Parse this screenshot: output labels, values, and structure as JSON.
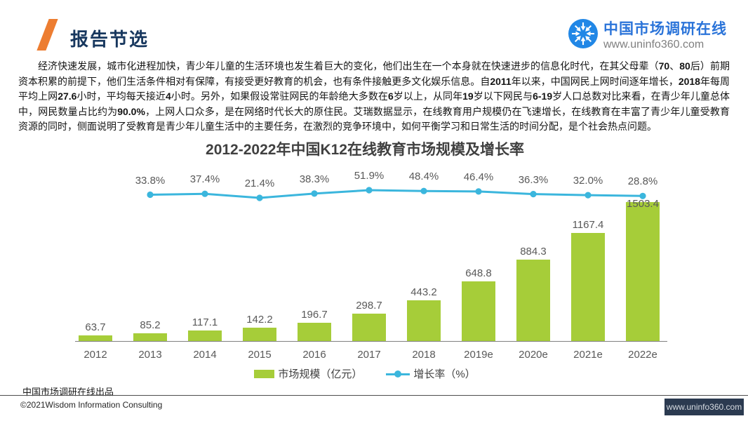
{
  "header": {
    "title": "报告节选"
  },
  "logo": {
    "name": "中国市场调研在线",
    "url": "www.uninfo360.com",
    "icon": "compass-arrows-icon"
  },
  "intro": {
    "segments": [
      {
        "t": "经济快速发展，城市化进程加快，青少年儿童的生活环境也发生着巨大的变化，他们出生在一个本身就在快速进步的信息化时代，在其父母辈（"
      },
      {
        "t": "70",
        "b": true
      },
      {
        "t": "、"
      },
      {
        "t": "80",
        "b": true
      },
      {
        "t": "后）前期资本积累的前提下，他们生活条件相对有保障，有接受更好教育的机会，也有条件接触更多文化娱乐信息。自"
      },
      {
        "t": "2011",
        "b": true
      },
      {
        "t": "年以来，中国网民上网时间逐年增长，"
      },
      {
        "t": "2018",
        "b": true
      },
      {
        "t": "年每周平均上网"
      },
      {
        "t": "27.6",
        "b": true
      },
      {
        "t": "小时，平均每天接近"
      },
      {
        "t": "4",
        "b": true
      },
      {
        "t": "小时。另外，如果假设常驻网民的年龄绝大多数在"
      },
      {
        "t": "6",
        "b": true
      },
      {
        "t": "岁以上，从同年"
      },
      {
        "t": "19",
        "b": true
      },
      {
        "t": "岁以下网民与"
      },
      {
        "t": "6-19",
        "b": true
      },
      {
        "t": "岁人口总数对比来看，在青少年儿童总体中，网民数量占比约为"
      },
      {
        "t": "90.0%",
        "b": true
      },
      {
        "t": "，上网人口众多，是在网络时代长大的原住民。艾瑞数据显示，在线教育用户规模仍在飞速增长，在线教育在丰富了青少年儿童受教育资源的同时，侧面说明了受教育是青少年儿童生活中的主要任务，在激烈的竞争环境中，如何平衡学习和日常生活的时间分配，是个社会热点问题。"
      }
    ]
  },
  "chart_data": {
    "type": "bar+line",
    "title": "2012-2022年中国K12在线教育市场规模及增长率",
    "categories": [
      "2012",
      "2013",
      "2014",
      "2015",
      "2016",
      "2017",
      "2018",
      "2019e",
      "2020e",
      "2021e",
      "2022e"
    ],
    "series": [
      {
        "name": "市场规模（亿元）",
        "type": "bar",
        "color": "#A6CD39",
        "values": [
          63.7,
          85.2,
          117.1,
          142.2,
          196.7,
          298.7,
          443.2,
          648.8,
          884.3,
          1167.4,
          1503.4
        ]
      },
      {
        "name": "增长率（%）",
        "type": "line",
        "color": "#3BB6DD",
        "values": [
          null,
          33.8,
          37.4,
          21.4,
          38.3,
          51.9,
          48.4,
          46.4,
          36.3,
          32.0,
          28.8
        ]
      }
    ],
    "value_label_format": "one-decimal",
    "line_label_format": "one-decimal-percent",
    "ylim_bars": [
      0,
      1600
    ],
    "grid": false,
    "legend_position": "bottom"
  },
  "footer": {
    "producer": "中国市场调研在线出品",
    "copyright": "©2021Wisdom Information Consulting",
    "site": "www.uninfo360.com"
  },
  "colors": {
    "accent_orange": "#ED7D31",
    "brand_blue": "#2B74D9",
    "heading_navy": "#17375E",
    "bar_green": "#A6CD39",
    "line_cyan": "#3BB6DD",
    "footer_navy": "#2B3A50"
  }
}
